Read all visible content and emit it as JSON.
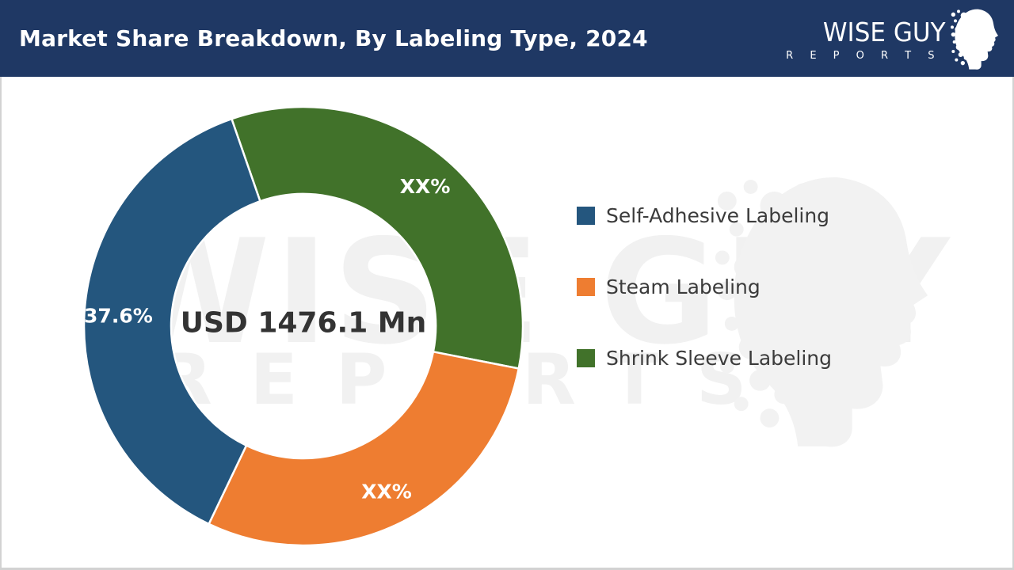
{
  "header": {
    "title": "Market Share Breakdown, By Labeling Type, 2024",
    "logo": {
      "wordmark": "WISE GUY",
      "subtext": "R E P O R T S"
    }
  },
  "chart_data": {
    "type": "pie",
    "subtype": "donut",
    "title": "Market Share Breakdown, By Labeling Type, 2024",
    "center_label": "USD 1476.1 Mn",
    "start_angle_deg": -19.1,
    "direction": "counterclockwise",
    "legend_position": "right",
    "slices": [
      {
        "name": "Self-Adhesive Labeling",
        "value_pct": 37.6,
        "display_label": "37.6%",
        "color": "#24567E"
      },
      {
        "name": "Steam Labeling",
        "value_pct": 29.0,
        "display_label": "XX%",
        "color": "#EE7D31"
      },
      {
        "name": "Shrink Sleeve Labeling",
        "value_pct": 33.4,
        "display_label": "XX%",
        "color": "#41722A"
      }
    ]
  },
  "watermark": {
    "wordmark": "WISE GUY",
    "subtext": "REPORTS"
  },
  "colors": {
    "header_bg": "#1F3864",
    "border": "#D2D2D2",
    "legend_text": "#3B3B3B",
    "center_text": "#333333",
    "watermark": "#F1F1F1"
  }
}
